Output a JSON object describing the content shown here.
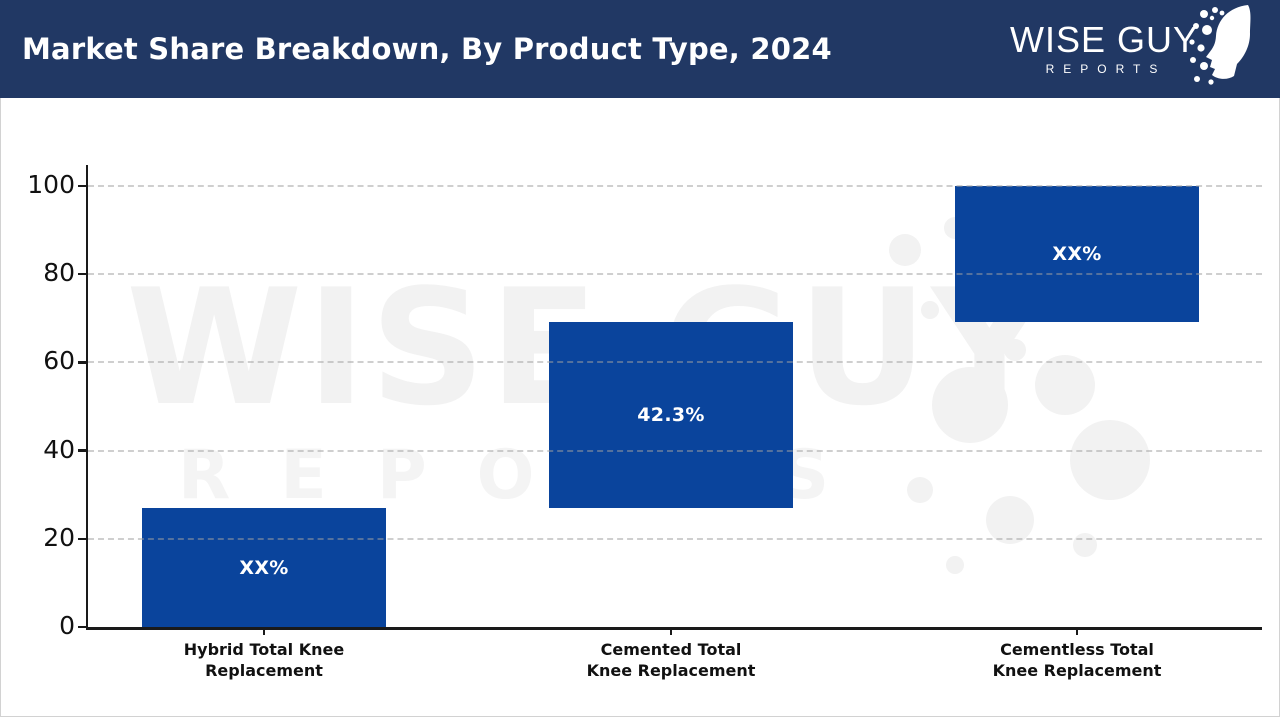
{
  "header": {
    "title": "Market Share Breakdown, By Product Type, 2024",
    "logo": {
      "wordmark": "WISE GUY",
      "subtext": "REPORTS"
    }
  },
  "watermark": {
    "wordmark": "WISE GUY",
    "subtext": "REPORTS"
  },
  "chart_data": {
    "type": "bar",
    "subtype": "stacked-waterfall",
    "title": "Market Share Breakdown, By Product Type, 2024",
    "categories": [
      "Hybrid Total Knee\nReplacement",
      "Cemented Total\nKnee Replacement",
      "Cementless Total\nKnee Replacement"
    ],
    "segments": [
      {
        "category": "Hybrid Total Knee Replacement",
        "start": 0,
        "end": 26.9,
        "label": "XX%"
      },
      {
        "category": "Cemented Total Knee Replacement",
        "start": 26.9,
        "end": 69.2,
        "label": "42.3%"
      },
      {
        "category": "Cementless Total Knee Replacement",
        "start": 69.2,
        "end": 100,
        "label": "XX%"
      }
    ],
    "ylim": [
      0,
      100
    ],
    "yticks": [
      0,
      20,
      40,
      60,
      80,
      100
    ],
    "xlabel": "",
    "ylabel": "",
    "grid": "horizontal-dashed",
    "legend": "none",
    "bar_color": "#0a449c",
    "bar_label_color": "#ffffff"
  },
  "colors": {
    "header_bg": "#213864",
    "bar": "#0a449c",
    "axis": "#1a1a1a",
    "grid": "#cfcfcf",
    "watermark": "#f2f2f2",
    "border": "#d2d2d2"
  }
}
